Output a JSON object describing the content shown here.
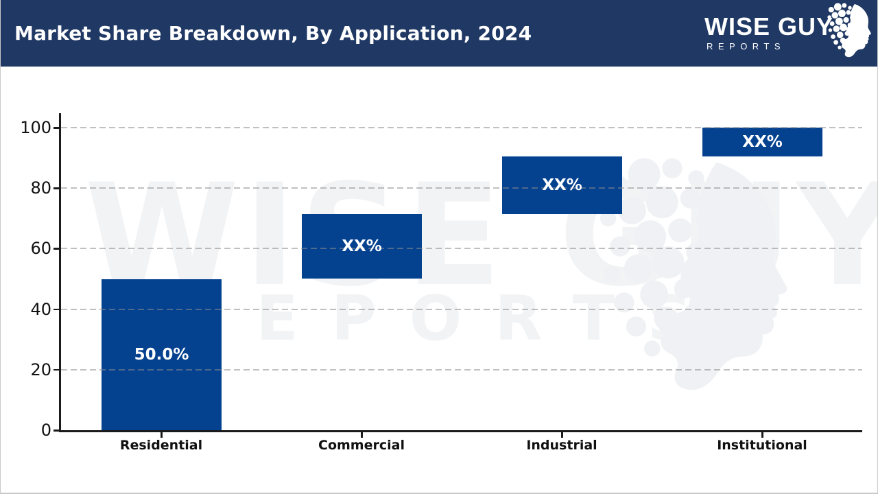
{
  "page": {
    "header": {
      "title": "Market Share Breakdown, By Application, 2024",
      "logo": {
        "line1": "WISE GUY",
        "line2": "REPORTS"
      }
    },
    "watermark": {
      "line1": "WISE GUY",
      "line2": "REPORTS"
    },
    "colors": {
      "header_bg": "#1f3864",
      "bar": "#04418f",
      "bar_label": "#ffffff",
      "axis": "#1a1a1a",
      "gridline": "#d9d9d9",
      "watermark": "#f2f3f5",
      "page_border": "#c9c9c9"
    }
  },
  "chart_data": {
    "type": "bar",
    "subtype": "waterfall",
    "title": "Market Share Breakdown, By Application, 2024",
    "categories": [
      "Residential",
      "Commercial",
      "Industrial",
      "Institutional"
    ],
    "segments": [
      {
        "category": "Residential",
        "start": 0,
        "end": 50,
        "label": "50.0%"
      },
      {
        "category": "Commercial",
        "start": 50,
        "end": 71.4,
        "label": "XX%"
      },
      {
        "category": "Industrial",
        "start": 71.4,
        "end": 90.5,
        "label": "XX%"
      },
      {
        "category": "Institutional",
        "start": 90.5,
        "end": 100,
        "label": "XX%"
      }
    ],
    "series": [
      {
        "name": "Market Share",
        "values": [
          50.0,
          21.4,
          19.1,
          9.5
        ]
      }
    ],
    "ylim": [
      0,
      100
    ],
    "yticks": [
      0,
      20,
      40,
      60,
      80,
      100
    ],
    "xlabel": "",
    "ylabel": "",
    "grid": true,
    "gridline_style": "dashed",
    "legend": false,
    "bar_color": "#04418f"
  }
}
